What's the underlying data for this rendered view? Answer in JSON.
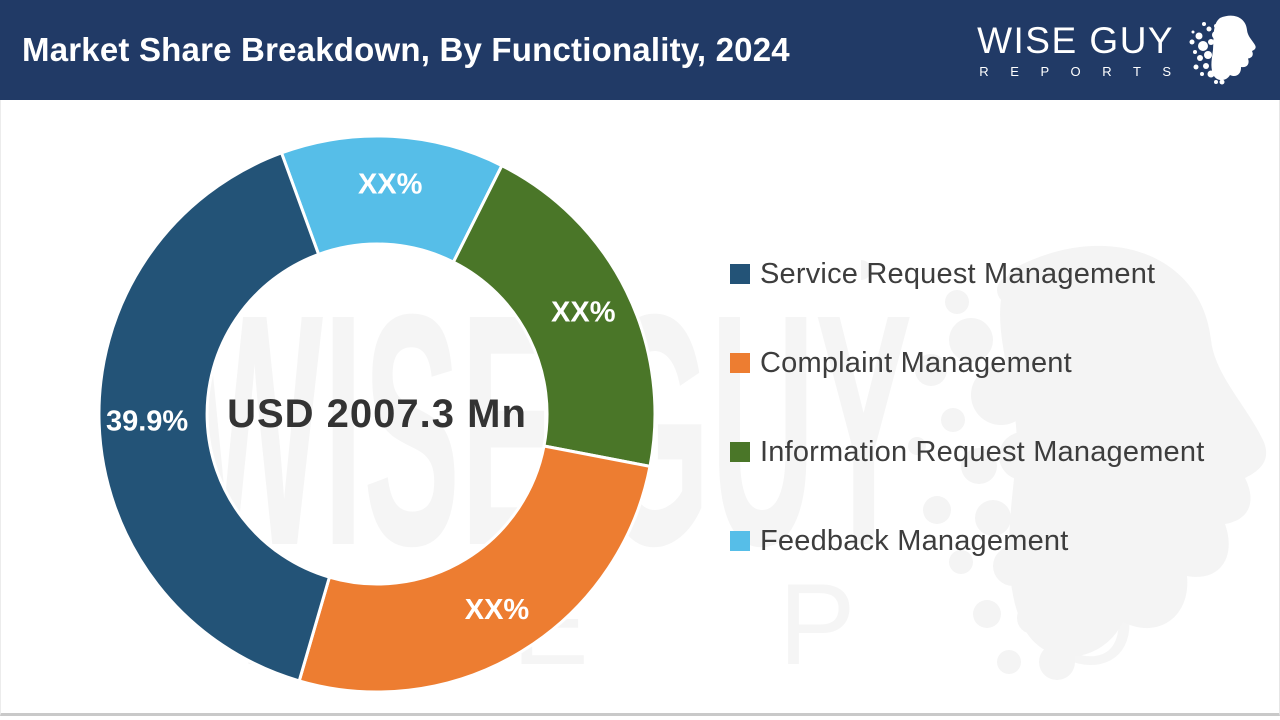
{
  "header": {
    "title": "Market Share Breakdown, By Functionality, 2024",
    "logo": {
      "line1": "WISE GUY",
      "line2": "R E P O R T S"
    }
  },
  "chart_data": {
    "type": "pie",
    "donut": true,
    "title": "Market Share Breakdown, By Functionality, 2024",
    "center_label": "USD 2007.3 Mn",
    "start_angle_deg": -20.1,
    "legend_position": "right",
    "note": "Three segment values are masked as XX% in the source image; percent_est values estimated from arc angles",
    "segments": [
      {
        "name": "Feedback Management",
        "display_label": "XX%",
        "percent_est": 13.0,
        "color": "#56BEE8"
      },
      {
        "name": "Information Request Management",
        "display_label": "XX%",
        "percent_est": 20.6,
        "color": "#4A7628"
      },
      {
        "name": "Complaint Management",
        "display_label": "XX%",
        "percent_est": 26.5,
        "color": "#ED7D31"
      },
      {
        "name": "Service Request Management",
        "display_label": "39.9%",
        "percent_est": 39.9,
        "color": "#235377"
      }
    ]
  },
  "legend": {
    "items": [
      {
        "label": "Service Request Management",
        "color": "#235377"
      },
      {
        "label": "Complaint Management",
        "color": "#ED7D31"
      },
      {
        "label": "Information Request Management",
        "color": "#4A7628"
      },
      {
        "label": "Feedback Management",
        "color": "#56BEE8"
      }
    ]
  },
  "watermark": {
    "line1": "WISE GUY",
    "line2": "REPORTS"
  }
}
